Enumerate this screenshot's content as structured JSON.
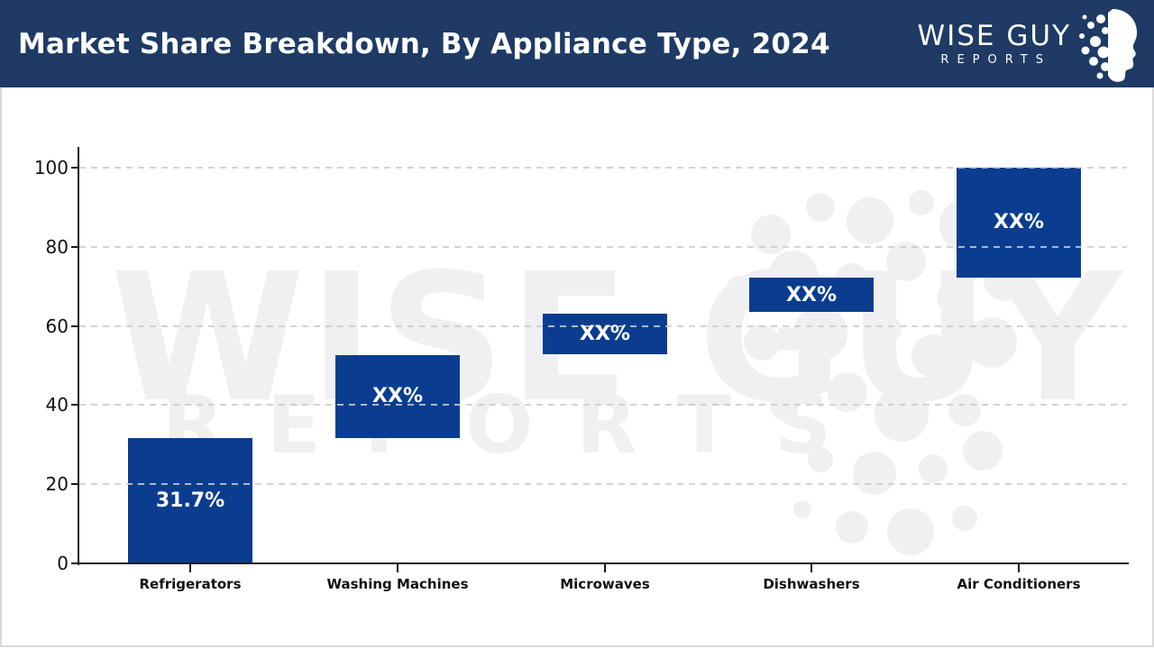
{
  "header": {
    "title": "Market Share Breakdown, By Appliance Type, 2024",
    "logo": {
      "line1": "WISE GUY",
      "line2": "REPORTS"
    }
  },
  "watermark": {
    "line1": "WISE GUY",
    "line2": "REPORTS"
  },
  "colors": {
    "header_bg": "#1e3a65",
    "bar": "#0a3d8f",
    "grid": "#cbcbcb",
    "bar_label_text": "#ffffff",
    "watermark": "#f0f0f3",
    "axis": "#1a1a1a"
  },
  "chart_data": {
    "type": "bar",
    "subtype": "waterfall",
    "title": "Market Share Breakdown, By Appliance Type, 2024",
    "categories": [
      "Refrigerators",
      "Washing Machines",
      "Microwaves",
      "Dishwashers",
      "Air Conditioners"
    ],
    "segments": [
      {
        "category": "Refrigerators",
        "start": 0,
        "end": 31.7,
        "label": "31.7%"
      },
      {
        "category": "Washing Machines",
        "start": 31.7,
        "end": 52.7,
        "label": "XX%"
      },
      {
        "category": "Microwaves",
        "start": 52.8,
        "end": 63.1,
        "label": "XX%"
      },
      {
        "category": "Dishwashers",
        "start": 63.5,
        "end": 72.2,
        "label": "XX%"
      },
      {
        "category": "Air Conditioners",
        "start": 72.3,
        "end": 100,
        "label": "XX%"
      }
    ],
    "xlabel": "",
    "ylabel": "",
    "ylim": [
      0,
      105
    ],
    "yticks": [
      0,
      20,
      40,
      60,
      80,
      100
    ],
    "grid": "horizontal-dashed",
    "legend": "none"
  }
}
